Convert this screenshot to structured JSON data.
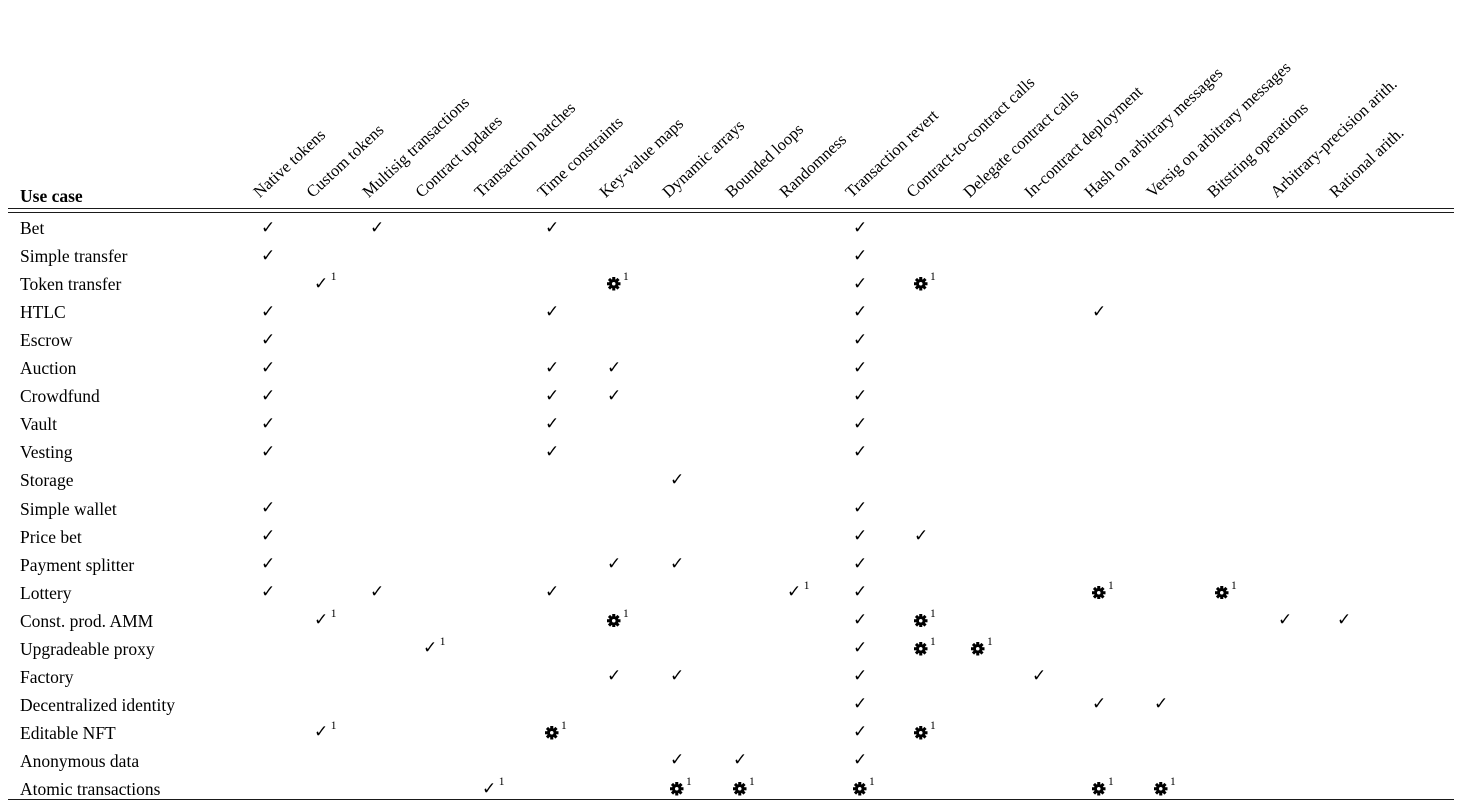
{
  "page": {
    "background_color": "#ffffff",
    "text_color": "#000000"
  },
  "table": {
    "corner_label": "Use case",
    "columns": [
      "Native tokens",
      "Custom tokens",
      "Multisig transactions",
      "Contract updates",
      "Transaction batches",
      "Time constraints",
      "Key-value maps",
      "Dynamic arrays",
      "Bounded loops",
      "Randomness",
      "Transaction revert",
      "Contract-to-contract calls",
      "Delegate contract calls",
      "In-contract deployment",
      "Hash on arbitrary messages",
      "Versig on arbitrary messages",
      "Bitstring operations",
      "Arbitrary-precision arith.",
      "Rational arith."
    ],
    "symbols": {
      "check": "✓",
      "gear": "gear-icon",
      "footnote_marker": "1"
    },
    "rows": [
      {
        "label": "Bet",
        "marks": [
          [
            1,
            "check"
          ],
          [
            3,
            "check"
          ],
          [
            6,
            "check"
          ],
          [
            11,
            "check"
          ]
        ]
      },
      {
        "label": "Simple transfer",
        "marks": [
          [
            1,
            "check"
          ],
          [
            11,
            "check"
          ]
        ]
      },
      {
        "label": "Token transfer",
        "marks": [
          [
            2,
            "check1"
          ],
          [
            7,
            "gear1"
          ],
          [
            11,
            "check"
          ],
          [
            12,
            "gear1"
          ]
        ]
      },
      {
        "label": "HTLC",
        "marks": [
          [
            1,
            "check"
          ],
          [
            6,
            "check"
          ],
          [
            11,
            "check"
          ],
          [
            15,
            "check"
          ]
        ]
      },
      {
        "label": "Escrow",
        "marks": [
          [
            1,
            "check"
          ],
          [
            11,
            "check"
          ]
        ]
      },
      {
        "label": "Auction",
        "marks": [
          [
            1,
            "check"
          ],
          [
            6,
            "check"
          ],
          [
            7,
            "check"
          ],
          [
            11,
            "check"
          ]
        ]
      },
      {
        "label": "Crowdfund",
        "marks": [
          [
            1,
            "check"
          ],
          [
            6,
            "check"
          ],
          [
            7,
            "check"
          ],
          [
            11,
            "check"
          ]
        ]
      },
      {
        "label": "Vault",
        "marks": [
          [
            1,
            "check"
          ],
          [
            6,
            "check"
          ],
          [
            11,
            "check"
          ]
        ]
      },
      {
        "label": "Vesting",
        "marks": [
          [
            1,
            "check"
          ],
          [
            6,
            "check"
          ],
          [
            11,
            "check"
          ]
        ]
      },
      {
        "label": "Storage",
        "marks": [
          [
            8,
            "check"
          ]
        ]
      },
      {
        "label": "Simple wallet",
        "marks": [
          [
            1,
            "check"
          ],
          [
            11,
            "check"
          ]
        ]
      },
      {
        "label": "Price bet",
        "marks": [
          [
            1,
            "check"
          ],
          [
            11,
            "check"
          ],
          [
            12,
            "check"
          ]
        ]
      },
      {
        "label": "Payment splitter",
        "marks": [
          [
            1,
            "check"
          ],
          [
            7,
            "check"
          ],
          [
            8,
            "check"
          ],
          [
            11,
            "check"
          ]
        ]
      },
      {
        "label": "Lottery",
        "marks": [
          [
            1,
            "check"
          ],
          [
            3,
            "check"
          ],
          [
            6,
            "check"
          ],
          [
            10,
            "check1"
          ],
          [
            11,
            "check"
          ],
          [
            15,
            "gear1"
          ],
          [
            17,
            "gear1"
          ]
        ]
      },
      {
        "label": "Const. prod. AMM",
        "marks": [
          [
            2,
            "check1"
          ],
          [
            7,
            "gear1"
          ],
          [
            11,
            "check"
          ],
          [
            12,
            "gear1"
          ],
          [
            18,
            "check"
          ],
          [
            19,
            "check"
          ]
        ]
      },
      {
        "label": "Upgradeable proxy",
        "marks": [
          [
            4,
            "check1"
          ],
          [
            11,
            "check"
          ],
          [
            12,
            "gear1"
          ],
          [
            13,
            "gear1"
          ]
        ]
      },
      {
        "label": "Factory",
        "marks": [
          [
            7,
            "check"
          ],
          [
            8,
            "check"
          ],
          [
            11,
            "check"
          ],
          [
            14,
            "check"
          ]
        ]
      },
      {
        "label": "Decentralized identity",
        "marks": [
          [
            11,
            "check"
          ],
          [
            15,
            "check"
          ],
          [
            16,
            "check"
          ]
        ]
      },
      {
        "label": "Editable NFT",
        "marks": [
          [
            2,
            "check1"
          ],
          [
            6,
            "gear1"
          ],
          [
            11,
            "check"
          ],
          [
            12,
            "gear1"
          ]
        ]
      },
      {
        "label": "Anonymous data",
        "marks": [
          [
            8,
            "check"
          ],
          [
            9,
            "check"
          ],
          [
            11,
            "check"
          ]
        ]
      },
      {
        "label": "Atomic transactions",
        "marks": [
          [
            5,
            "check1"
          ],
          [
            8,
            "gear1"
          ],
          [
            9,
            "gear1"
          ],
          [
            11,
            "gear1"
          ],
          [
            15,
            "gear1"
          ],
          [
            16,
            "gear1"
          ]
        ]
      }
    ]
  }
}
